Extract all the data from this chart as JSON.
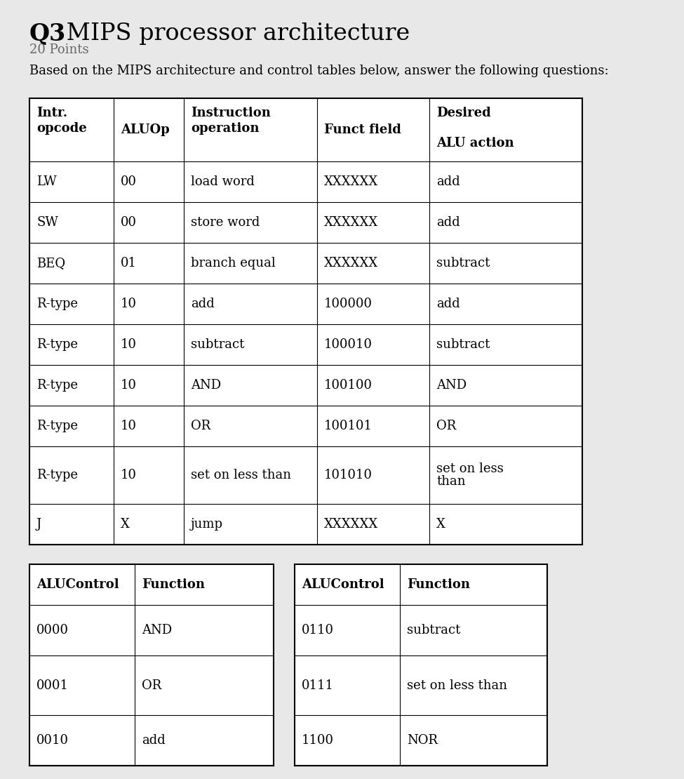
{
  "title_bold": "Q3",
  "title_normal": " MIPS processor architecture",
  "subtitle": "20 Points",
  "description": "Based on the MIPS architecture and control tables below, answer the following questions:",
  "bg_color": "#e8e8e8",
  "table1_col_headers": [
    "Intr.\nopcode",
    "ALUOp",
    "Instruction\noperation",
    "Funct field",
    "Desired\n\nALU action"
  ],
  "table1_rows": [
    [
      "LW",
      "00",
      "load word",
      "XXXXXX",
      "add"
    ],
    [
      "SW",
      "00",
      "store word",
      "XXXXXX",
      "add"
    ],
    [
      "BEQ",
      "01",
      "branch equal",
      "XXXXXX",
      "subtract"
    ],
    [
      "R-type",
      "10",
      "add",
      "100000",
      "add"
    ],
    [
      "R-type",
      "10",
      "subtract",
      "100010",
      "subtract"
    ],
    [
      "R-type",
      "10",
      "AND",
      "100100",
      "AND"
    ],
    [
      "R-type",
      "10",
      "OR",
      "100101",
      "OR"
    ],
    [
      "R-type",
      "10",
      "set on less than",
      "101010",
      "set on less\nthan"
    ],
    [
      "J",
      "X",
      "jump",
      "XXXXXX",
      "X"
    ]
  ],
  "table2_headers": [
    "ALUControl",
    "Function",
    "ALUControl",
    "Function"
  ],
  "table2_rows": [
    [
      "0000",
      "AND",
      "0110",
      "subtract"
    ],
    [
      "0001",
      "OR",
      "0111",
      "set on less than"
    ],
    [
      "0010",
      "add",
      "1100",
      "NOR"
    ]
  ]
}
